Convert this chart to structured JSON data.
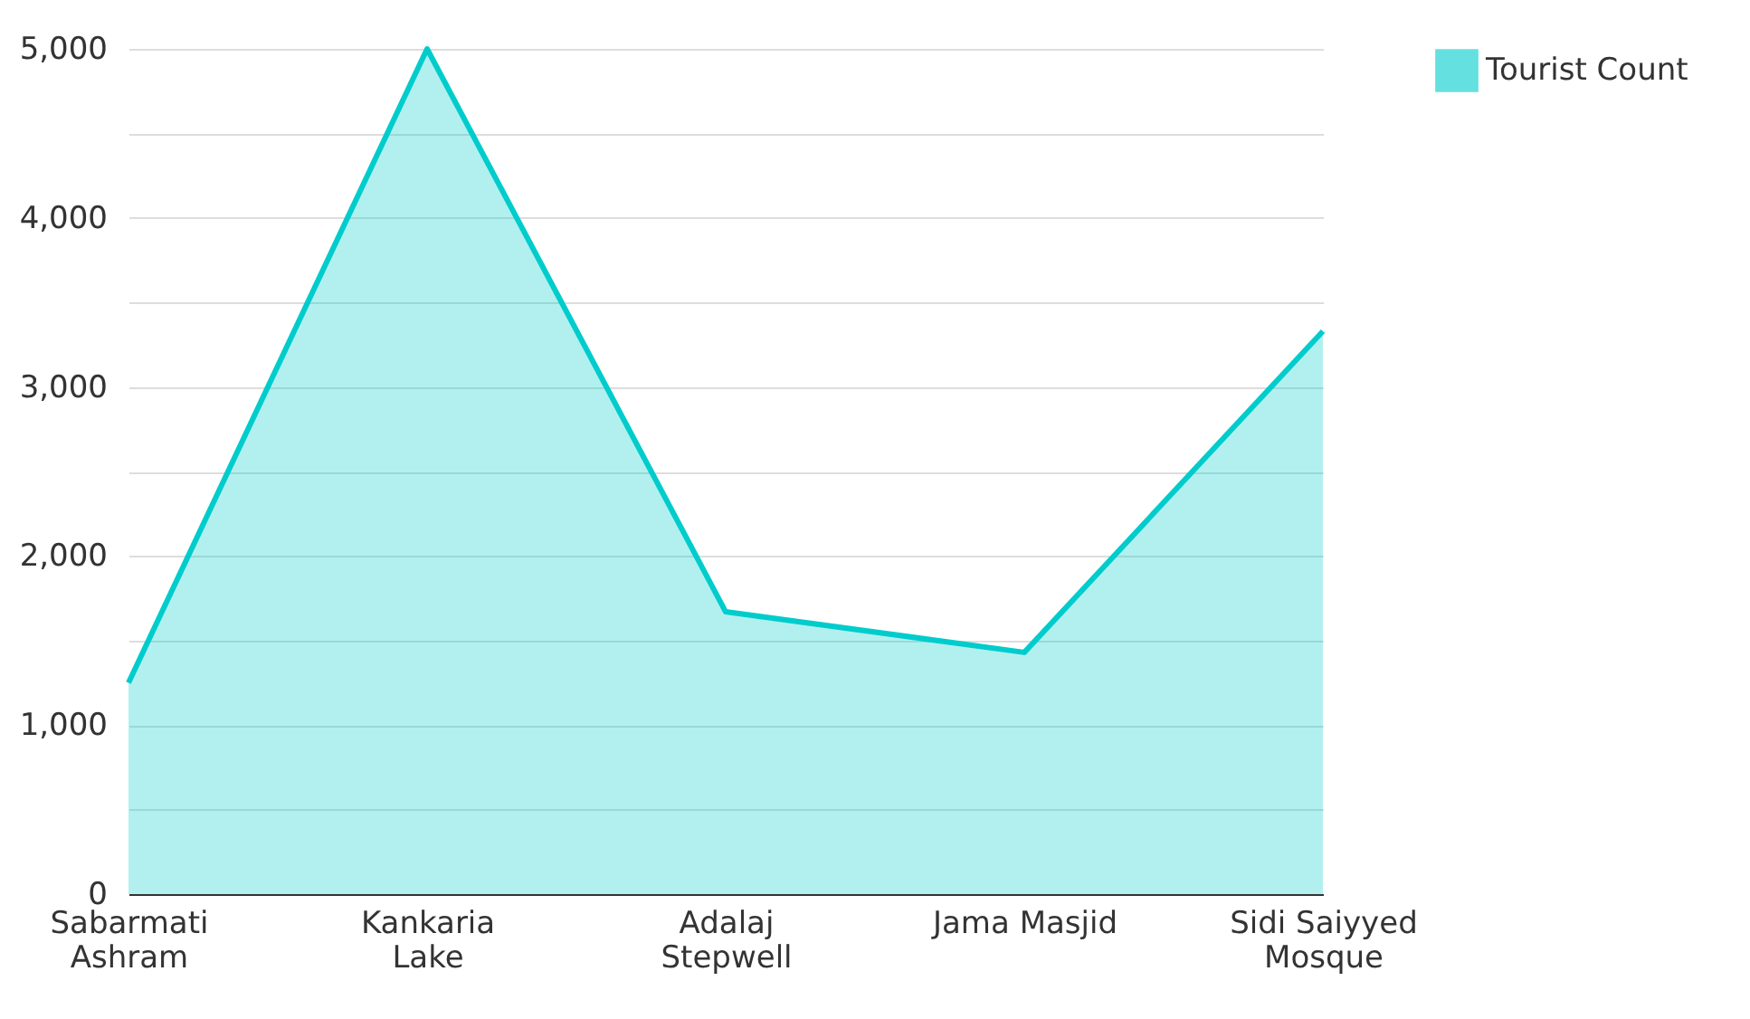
{
  "chart_data": {
    "type": "area",
    "categories": [
      "Sabarmati\nAshram",
      "Kankaria\nLake",
      "Adalaj\nStepwell",
      "Jama Masjid",
      "Sidi Saiyyed\nMosque"
    ],
    "series": [
      {
        "name": "Tourist Count",
        "color": "#00cccc",
        "values": [
          1250,
          5000,
          1670,
          1430,
          3330
        ]
      }
    ],
    "ylim": [
      0,
      5000
    ],
    "yticks": [
      0,
      {
        "value": 500,
        "label": null
      },
      {
        "value": 1000,
        "label": "1,000"
      },
      {
        "value": 1500,
        "label": null
      },
      {
        "value": 2000,
        "label": "2,000"
      },
      {
        "value": 2500,
        "label": null
      },
      {
        "value": 3000,
        "label": "3,000"
      },
      {
        "value": 3500,
        "label": null
      },
      {
        "value": 4000,
        "label": "4,000"
      },
      {
        "value": 4500,
        "label": null
      },
      {
        "value": 5000,
        "label": "5,000"
      }
    ],
    "grid": "y",
    "legend": "top right"
  }
}
